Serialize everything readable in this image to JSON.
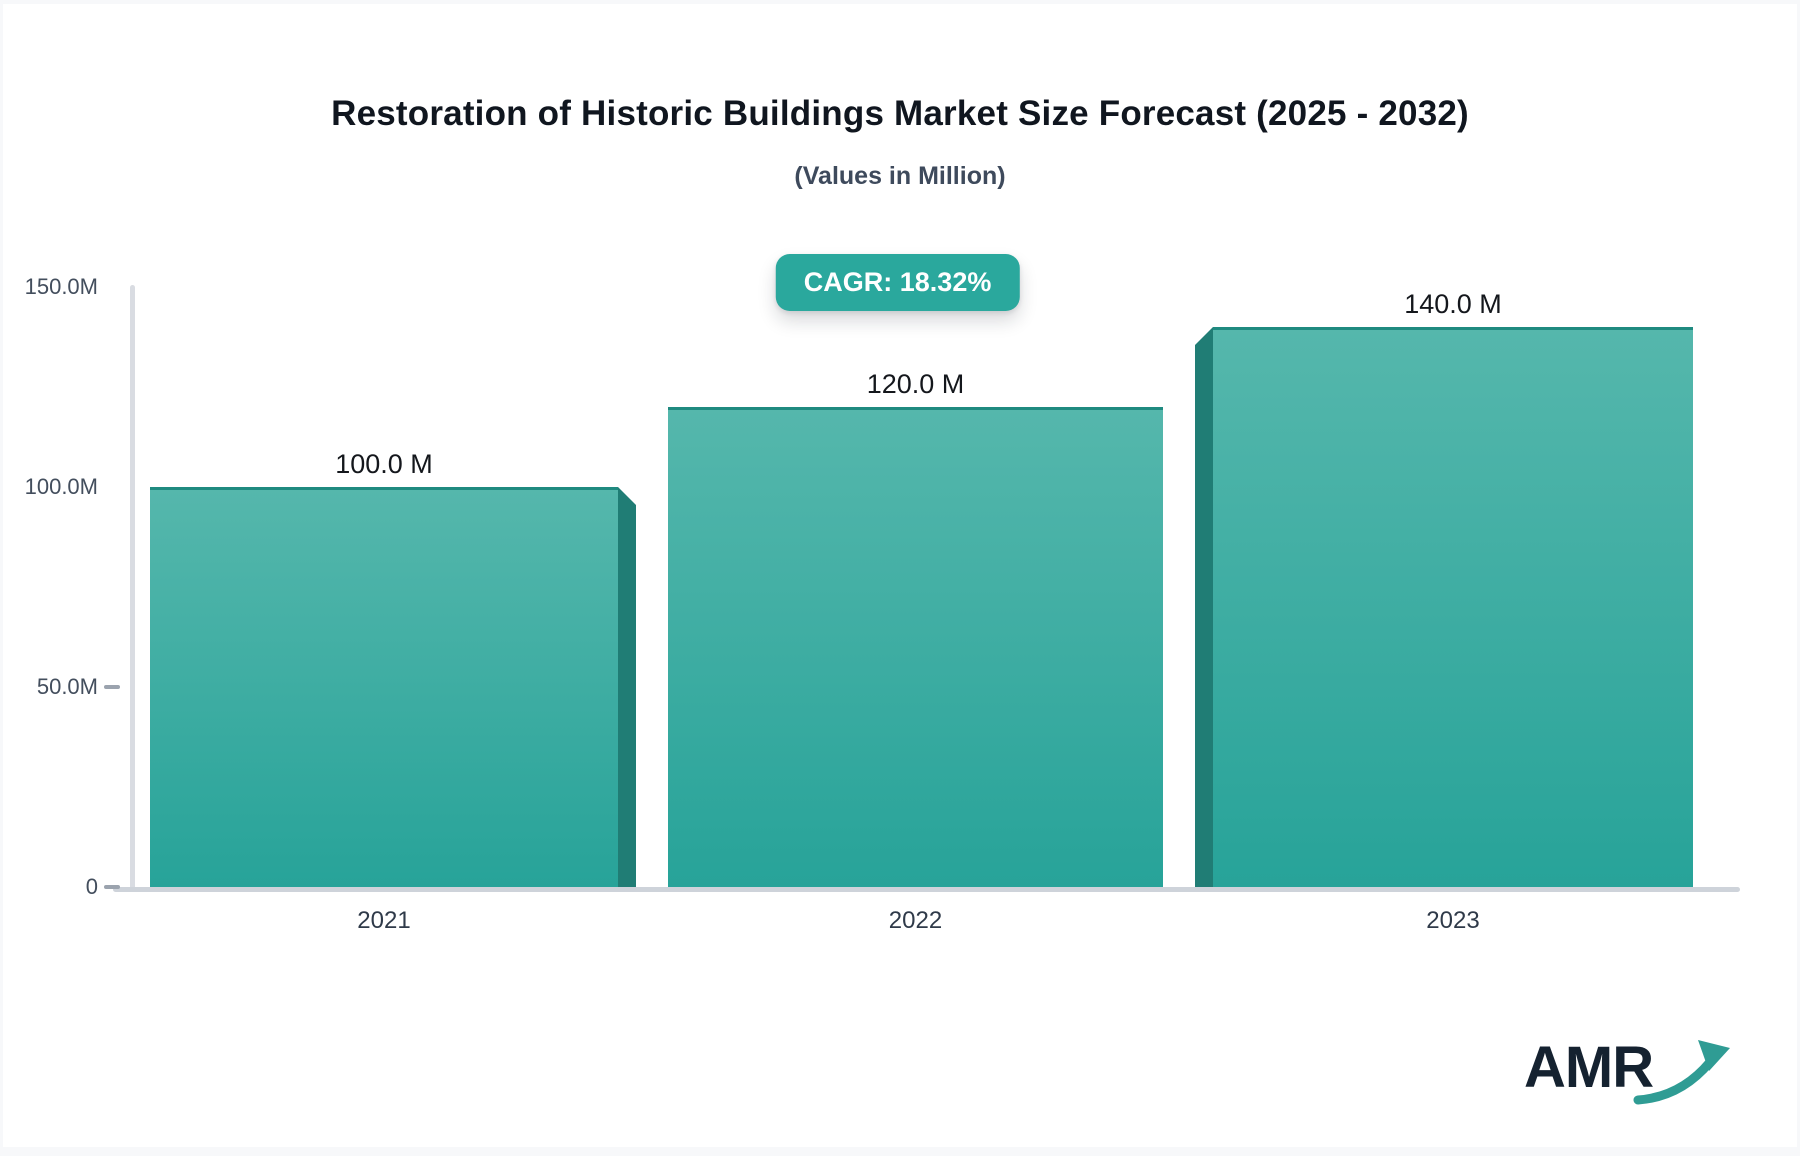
{
  "header": {
    "title": "Restoration of Historic Buildings Market Size Forecast (2025 - 2032)",
    "subtitle": "(Values in Million)"
  },
  "cagr_badge": {
    "label": "CAGR: 18.32%",
    "background": "#2aa89d",
    "text_color": "#ffffff"
  },
  "chart_data": {
    "type": "bar",
    "title": "Restoration of Historic Buildings Market Size Forecast (2025 - 2032)",
    "subtitle": "(Values in Million)",
    "unit": "Million",
    "categories": [
      "2021",
      "2022",
      "2023"
    ],
    "values": [
      100.0,
      120.0,
      140.0
    ],
    "value_labels": [
      "100.0 M",
      "120.0 M",
      "140.0 M"
    ],
    "cagr_percent": "18.32%",
    "y_axis": {
      "range": [
        0,
        150
      ],
      "ticks": [
        {
          "value": 150,
          "label": "150.0M"
        },
        {
          "value": 100,
          "label": "100.0M"
        },
        {
          "value": 50,
          "label": "50.0M"
        },
        {
          "value": 0,
          "label": "0"
        }
      ]
    },
    "grid": false,
    "legend": false,
    "bar_color_top": "#55b7ac",
    "bar_color_bottom": "#27a399",
    "bar_side_color": "#207d75",
    "bar_top_edge_color": "#1f8a80"
  },
  "branding": {
    "logo_text": "AMR",
    "logo_arrow_icon": "trend-up-arrow",
    "logo_text_color": "#152230",
    "logo_arrow_color": "#2f9c94"
  }
}
